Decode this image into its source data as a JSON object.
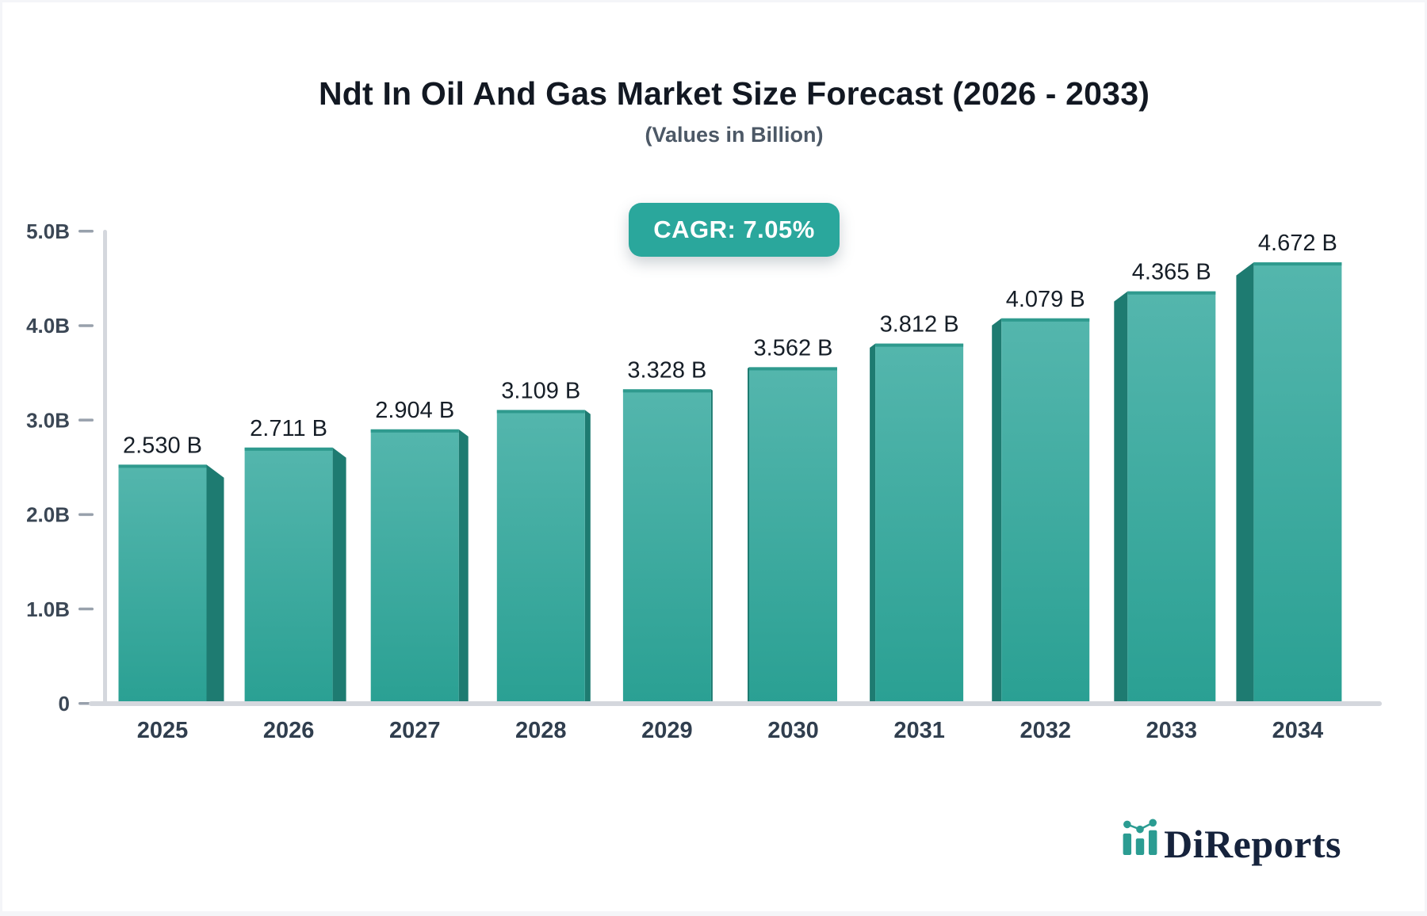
{
  "header": {
    "title": "Ndt In Oil And Gas Market Size Forecast (2026 - 2033)",
    "subtitle": "(Values in Billion)"
  },
  "badge": {
    "label": "CAGR: 7.05%"
  },
  "logo": {
    "text": "DiReports",
    "icon": "mini-bar-chart-trend-icon"
  },
  "colors": {
    "accent": "#2aa79c",
    "bar_face_top": "#54b6ad",
    "bar_face_bottom": "#2aa093",
    "bar_top_edge": "#2f9a8e",
    "bar_side": "#1e7b71",
    "axis_line": "#d4d7dd",
    "tick": "#98a1ac",
    "y_label": "#3b4755",
    "x_label": "#303e4e",
    "value_label": "#161e27",
    "logo_teal": "#2b9c92",
    "logo_navy": "#16233c"
  },
  "chart_data": {
    "type": "bar",
    "title": "Ndt In Oil And Gas Market Size Forecast (2026 - 2033)",
    "subtitle": "(Values in Billion)",
    "cagr_annotation": "CAGR: 7.05%",
    "categories": [
      "2025",
      "2026",
      "2027",
      "2028",
      "2029",
      "2030",
      "2031",
      "2032",
      "2033",
      "2034"
    ],
    "values": [
      2.53,
      2.711,
      2.904,
      3.109,
      3.328,
      3.562,
      3.812,
      4.079,
      4.365,
      4.672
    ],
    "value_labels": [
      "2.530 B",
      "2.711 B",
      "2.904 B",
      "3.109 B",
      "3.328 B",
      "3.562 B",
      "3.812 B",
      "4.079 B",
      "4.365 B",
      "4.672 B"
    ],
    "xlabel": "",
    "ylabel": "",
    "ylim": [
      0,
      5
    ],
    "yticks": [
      "0",
      "1.0B",
      "2.0B",
      "3.0B",
      "4.0B",
      "5.0B"
    ],
    "grid": false,
    "legend": false,
    "bar_style": "3d-perspective-center-vanishing"
  }
}
